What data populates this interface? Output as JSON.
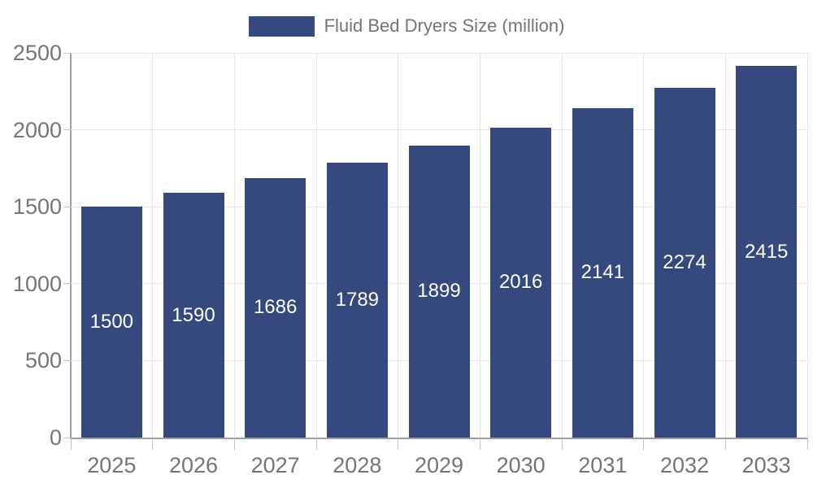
{
  "chart_data": {
    "type": "bar",
    "title": "Fluid Bed Dryers Size (million)",
    "categories": [
      "2025",
      "2026",
      "2027",
      "2028",
      "2029",
      "2030",
      "2031",
      "2032",
      "2033"
    ],
    "values": [
      1500,
      1590,
      1686,
      1789,
      1899,
      2016,
      2141,
      2274,
      2415
    ],
    "xlabel": "",
    "ylabel": "",
    "y_ticks": [
      0,
      500,
      1000,
      1500,
      2000,
      2500
    ],
    "ylim": [
      0,
      2500
    ],
    "grid": true,
    "legend_position": "top-center",
    "bar_labels_shown": true,
    "colors": {
      "bar": "#35497f",
      "axis_line": "#9e9e9e",
      "grid_line": "#e8e8e8",
      "tick_mark": "#c2c2c2",
      "tick_label": "#757575",
      "legend_text": "#757575",
      "bar_label": "#ffffff",
      "background": "#ffffff"
    }
  }
}
